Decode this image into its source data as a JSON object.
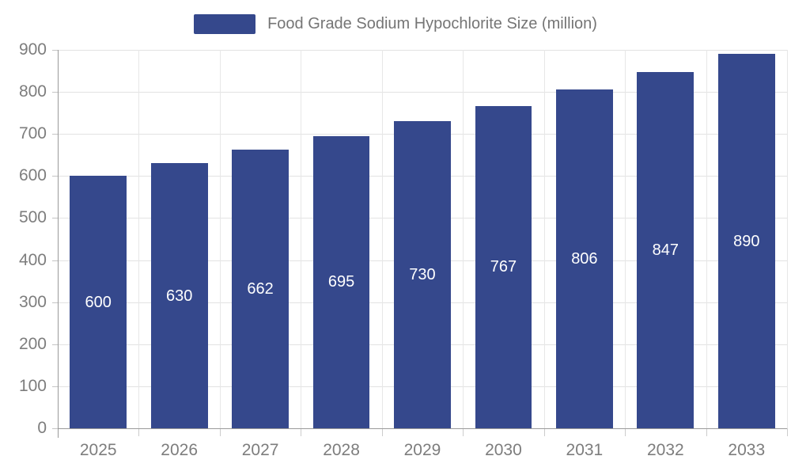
{
  "legend": {
    "label": "Food Grade Sodium Hypochlorite Size (million)"
  },
  "chart_data": {
    "type": "bar",
    "title": "Food Grade Sodium Hypochlorite Size (million)",
    "categories": [
      "2025",
      "2026",
      "2027",
      "2028",
      "2029",
      "2030",
      "2031",
      "2032",
      "2033"
    ],
    "values": [
      600,
      630,
      662,
      695,
      730,
      767,
      806,
      847,
      890
    ],
    "xlabel": "",
    "ylabel": "",
    "ylim": [
      0,
      900
    ],
    "yticks": [
      0,
      100,
      200,
      300,
      400,
      500,
      600,
      700,
      800,
      900
    ],
    "grid": true,
    "legend_position": "top-center",
    "colors": {
      "bar": "#35488C",
      "value_label": "#ffffff",
      "axis_line": "#9a9a9a",
      "grid_line": "#e3e3e3",
      "tick_label": "#7d7d7d",
      "legend_text": "#757575"
    }
  }
}
